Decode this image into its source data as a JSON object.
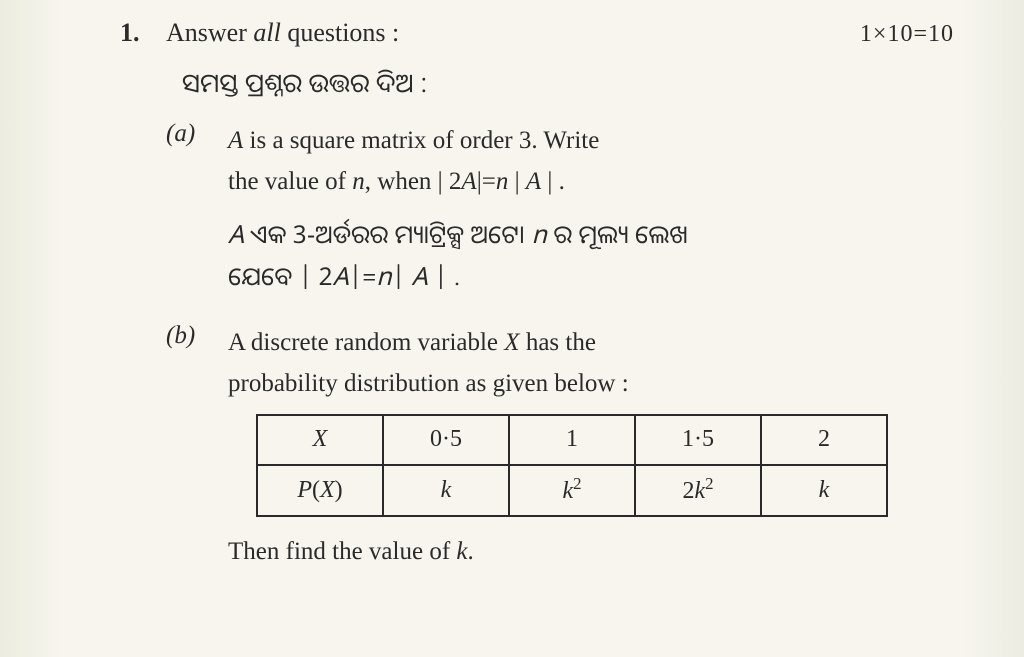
{
  "header": {
    "number": "1.",
    "text_before_emph": "Answer ",
    "emph": "all",
    "text_after_emph": " questions :",
    "marks": "1×10=10"
  },
  "odia_main": "ସମସ୍ତ ପ୍ରଶ୍ନର ଉତ୍ତର ଦିଅ :",
  "part_a": {
    "label": "(a)",
    "en_line1": "A is a square matrix of order 3. Write",
    "en_line2_pre": "the value of ",
    "en_line2_var": "n",
    "en_line2_post": ", when |2A|=n|A|.",
    "odia_line": "A ଏକ 3-ଅର୍ଡରର ମ୍ୟାଟ୍ରିକ୍ସ ଅଟେ। n ର ମୂଲ୍ୟ ଲେଖ ଯେବେ |2A|=n|A|."
  },
  "part_b": {
    "label": "(b)",
    "en_line1": "A discrete random variable X has the",
    "en_line2": "probability distribution as given below :",
    "table": {
      "r1": [
        "X",
        "0·5",
        "1",
        "1·5",
        "2"
      ],
      "r2": [
        "P(X)",
        "k",
        "k²",
        "2k²",
        "k"
      ]
    },
    "closing_pre": "Then find the value of ",
    "closing_var": "k",
    "closing_post": "."
  }
}
